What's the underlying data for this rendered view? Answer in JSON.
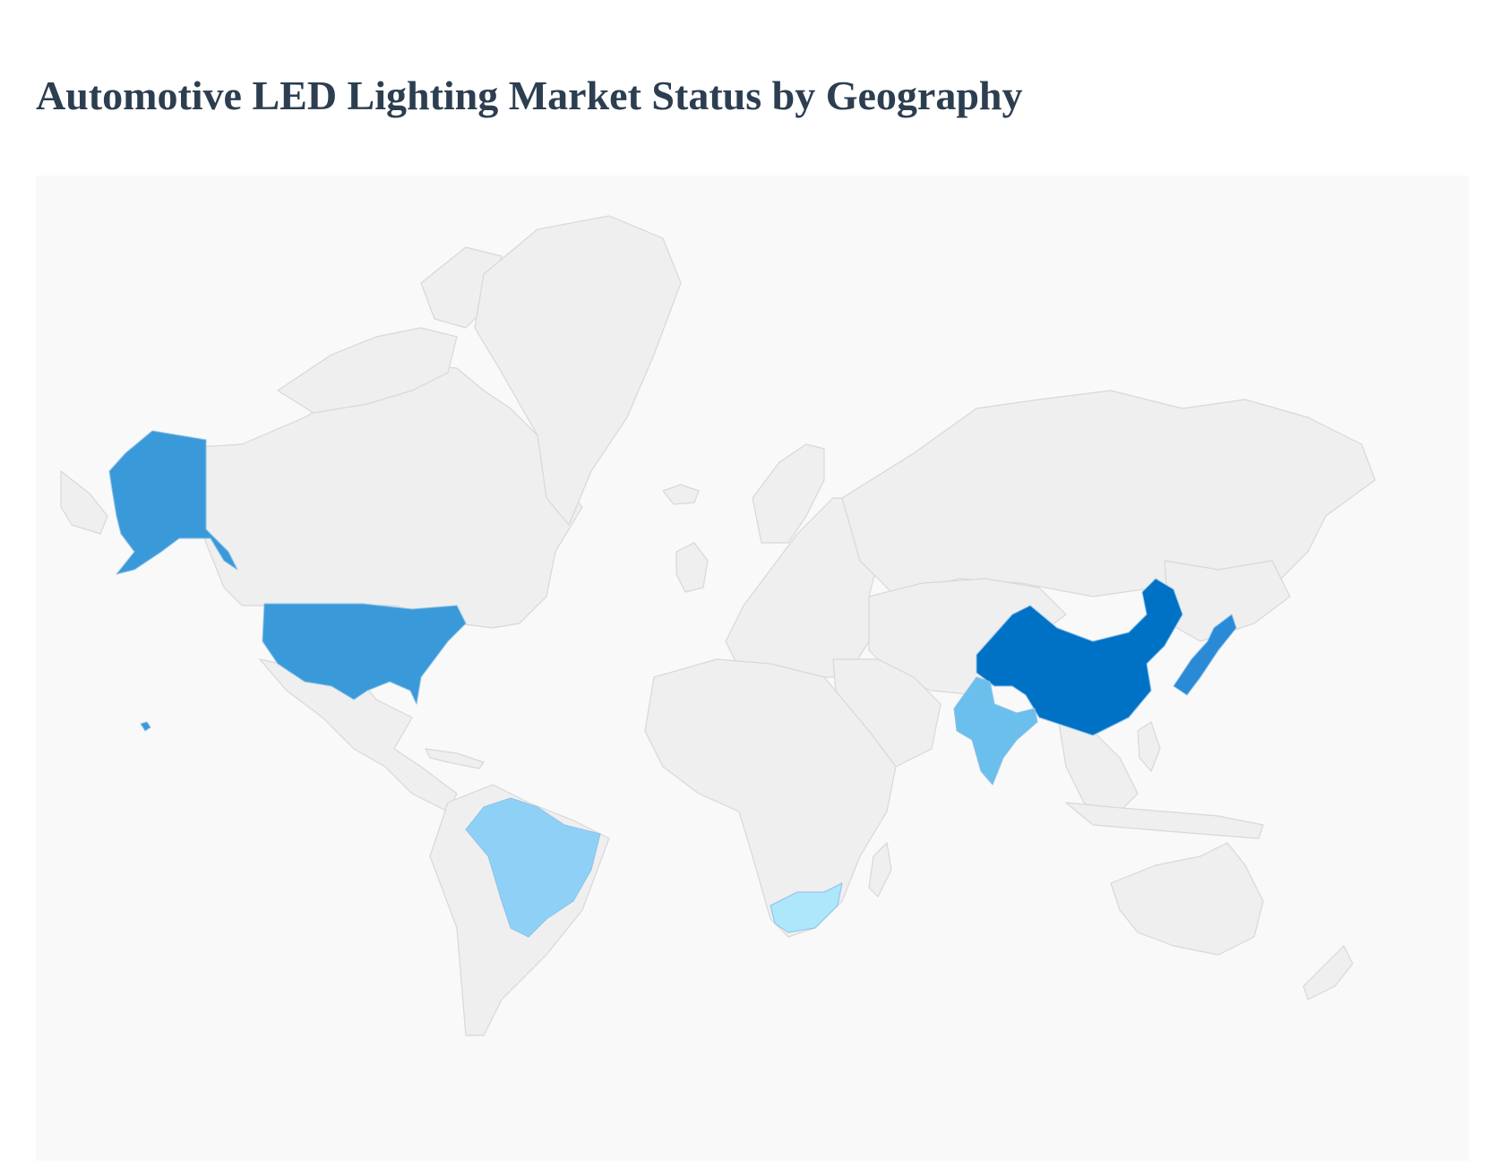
{
  "page": {
    "title": "Automotive LED Lighting Market Status by Geography"
  },
  "map": {
    "base_color": "#efefef",
    "border_color": "#d8d8d8",
    "background": "#f9f9f9",
    "highlighted_regions": [
      {
        "region": "China",
        "color": "#0072c6"
      },
      {
        "region": "United States",
        "color": "#3a9ad9"
      },
      {
        "region": "Japan",
        "color": "#2a8ad6"
      },
      {
        "region": "India",
        "color": "#6bbfec"
      },
      {
        "region": "Brazil",
        "color": "#8fd1f6"
      },
      {
        "region": "South Africa",
        "color": "#aee6fb"
      }
    ]
  }
}
